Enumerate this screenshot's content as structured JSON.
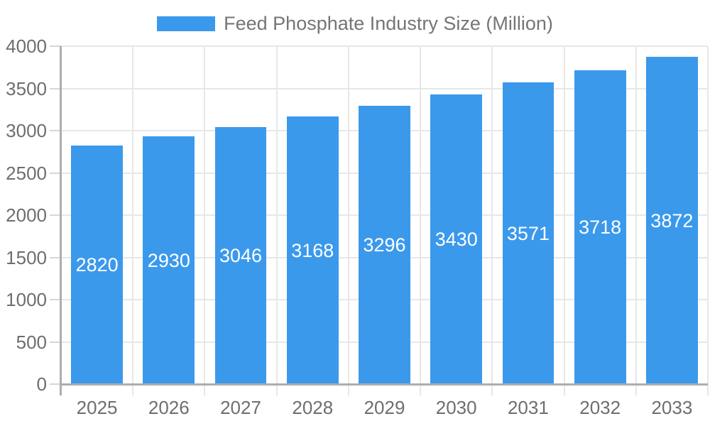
{
  "legend": {
    "label": "Feed Phosphate Industry Size (Million)"
  },
  "chart_data": {
    "type": "bar",
    "title": "Feed Phosphate Industry Size (Million)",
    "categories": [
      "2025",
      "2026",
      "2027",
      "2028",
      "2029",
      "2030",
      "2031",
      "2032",
      "2033"
    ],
    "values": [
      2820,
      2930,
      3046,
      3168,
      3296,
      3430,
      3571,
      3718,
      3872
    ],
    "xlabel": "",
    "ylabel": "",
    "ylim": [
      0,
      4000
    ],
    "y_ticks": [
      0,
      500,
      1000,
      1500,
      2000,
      2500,
      3000,
      3500,
      4000
    ],
    "grid": true,
    "legend_position": "top",
    "value_labels": "inside-center",
    "colors": {
      "bar": "#3B99EC",
      "grid": "#E7E7E7",
      "tick": "#D6D6D6",
      "axis_line": "#ADADAD",
      "axis_text": "#6E6E6E",
      "legend_text": "#757575",
      "value_label_text": "#FFFFFF",
      "background": "#FFFFFF"
    }
  }
}
